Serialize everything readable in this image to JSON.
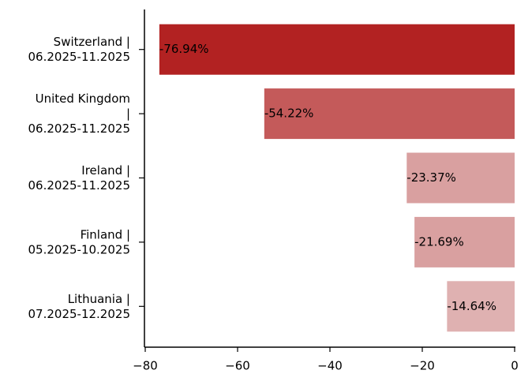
{
  "chart_data": {
    "type": "barh",
    "categories": [
      "Switzerland |\n06.2025-11.2025",
      "United Kingdom\n|\n06.2025-11.2025",
      "Ireland |\n06.2025-11.2025",
      "Finland |\n05.2025-10.2025",
      "Lithuania |\n07.2025-12.2025"
    ],
    "values": [
      -76.94,
      -54.22,
      -23.37,
      -21.69,
      -14.64
    ],
    "value_labels": [
      "-76.94%",
      "-54.22%",
      "-23.37%",
      "-21.69%",
      "-14.64%"
    ],
    "colors": [
      "#b22222",
      "#c45a5a",
      "#d9a0a0",
      "#d9a0a0",
      "#dfb1b1"
    ],
    "xlim": [
      -80,
      0
    ],
    "xticks": [
      {
        "value": -80,
        "label": "−80"
      },
      {
        "value": -60,
        "label": "−60"
      },
      {
        "value": -40,
        "label": "−40"
      },
      {
        "value": -20,
        "label": "−20"
      },
      0
    ]
  }
}
